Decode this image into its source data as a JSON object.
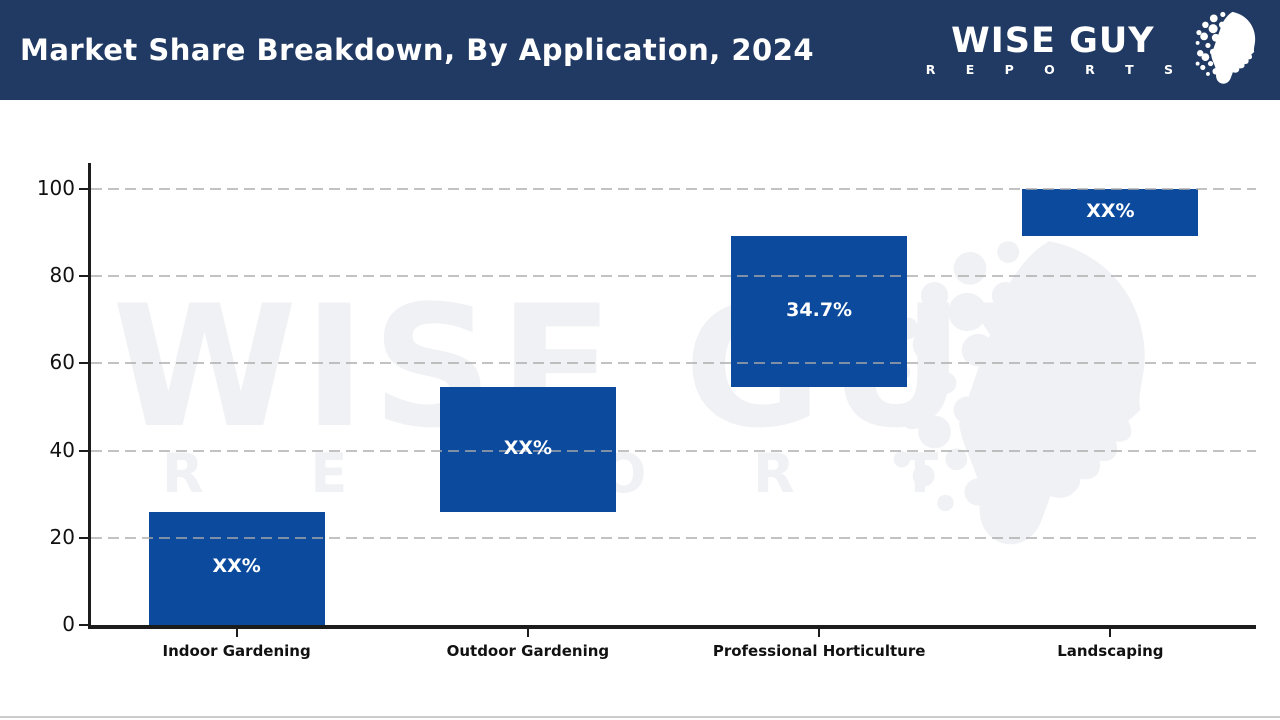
{
  "header": {
    "title": "Market Share Breakdown, By Application, 2024",
    "logo_line1": "WISE GUY",
    "logo_line2": "R E P O R T S"
  },
  "watermark": {
    "line1": "WISE GUY",
    "line2": "R E P O R T S"
  },
  "colors": {
    "header_bg": "#213a63",
    "bar": "#0b4a9d",
    "bar_label": "#ffffff",
    "grid": "#aaaaaa",
    "grid_opacity": 0.72,
    "axis": "#1c1c1c",
    "watermark": "#f0f1f4"
  },
  "chart_data": {
    "type": "bar",
    "subtype": "waterfall",
    "title": "Market Share Breakdown, By Application, 2024",
    "categories": [
      "Indoor Gardening",
      "Outdoor Gardening",
      "Professional Horticulture",
      "Landscaping"
    ],
    "segments": [
      {
        "category": "Indoor Gardening",
        "start": 0,
        "end": 26,
        "label": "XX%"
      },
      {
        "category": "Outdoor Gardening",
        "start": 26,
        "end": 54.5,
        "label": "XX%"
      },
      {
        "category": "Professional Horticulture",
        "start": 54.5,
        "end": 89.2,
        "label": "34.7%",
        "value": 34.7
      },
      {
        "category": "Landscaping",
        "start": 89.2,
        "end": 100,
        "label": "XX%"
      }
    ],
    "xlabel": "",
    "ylabel": "",
    "y_ticks": [
      0,
      20,
      40,
      60,
      80,
      100
    ],
    "ylim": [
      0,
      106
    ],
    "grid": "horizontal dashed, drawn over bars",
    "legend": false
  }
}
